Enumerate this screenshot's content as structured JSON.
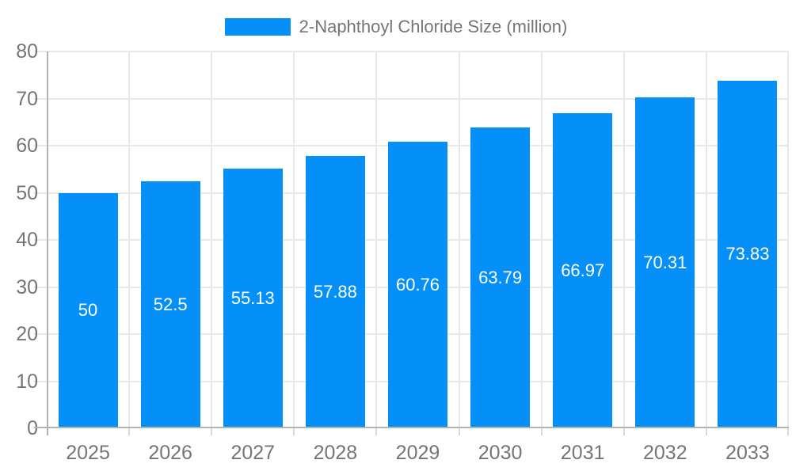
{
  "legend": {
    "label": "2-Naphthoyl Chloride Size (million)",
    "position": "top"
  },
  "colors": {
    "bar": "#0590f9",
    "grid": "#e8e8e8",
    "axis": "#b3b3b3",
    "tick": "#d9d9d9",
    "tick_label": "#757575",
    "legend_label": "#757575",
    "bar_label": "#ffffff",
    "background": "#ffffff"
  },
  "chart_data": {
    "type": "bar",
    "title": "",
    "legend_entries": [
      "2-Naphthoyl Chloride Size (million)"
    ],
    "legend_position": "top",
    "categories": [
      "2025",
      "2026",
      "2027",
      "2028",
      "2029",
      "2030",
      "2031",
      "2032",
      "2033"
    ],
    "series": [
      {
        "name": "2-Naphthoyl Chloride Size (million)",
        "values": [
          50,
          52.5,
          55.13,
          57.88,
          60.76,
          63.79,
          66.97,
          70.31,
          73.83
        ]
      }
    ],
    "value_labels": [
      "50",
      "52.5",
      "55.13",
      "57.88",
      "60.76",
      "63.79",
      "66.97",
      "70.31",
      "73.83"
    ],
    "xlabel": "",
    "ylabel": "",
    "ylim": [
      0,
      80
    ],
    "yticks": [
      0,
      10,
      20,
      30,
      40,
      50,
      60,
      70,
      80
    ],
    "grid": true
  }
}
